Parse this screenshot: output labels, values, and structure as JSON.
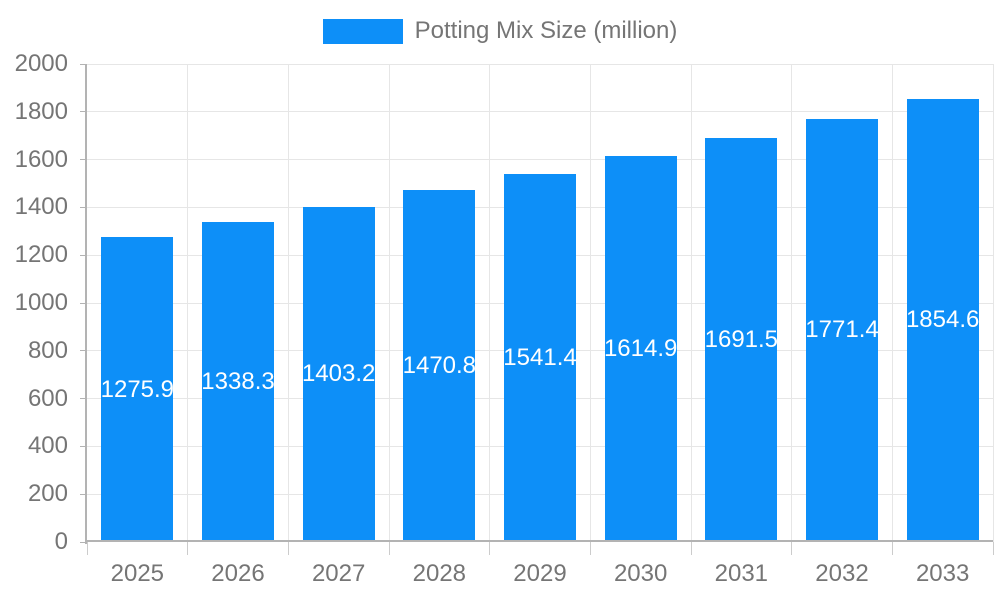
{
  "colors": {
    "bar": "#0d8ff8",
    "grid": "#e6e6e6",
    "axis": "#b3b3b3",
    "tick": "#cccccc",
    "text": "#757575",
    "value_text": "#ffffff",
    "background": "#ffffff"
  },
  "chart_data": {
    "type": "bar",
    "title": "",
    "legend_label": "Potting Mix Size (million)",
    "legend_position": "top-center",
    "categories": [
      "2025",
      "2026",
      "2027",
      "2028",
      "2029",
      "2030",
      "2031",
      "2032",
      "2033"
    ],
    "values": [
      1275.9,
      1338.3,
      1403.2,
      1470.8,
      1541.4,
      1614.9,
      1691.5,
      1771.4,
      1854.6
    ],
    "xlabel": "",
    "ylabel": "",
    "ylim": [
      0,
      2000
    ],
    "yticks": [
      0,
      200,
      400,
      600,
      800,
      1000,
      1200,
      1400,
      1600,
      1800,
      2000
    ],
    "grid": true,
    "value_label_position": "inside-center",
    "value_label_decimals": 1
  }
}
